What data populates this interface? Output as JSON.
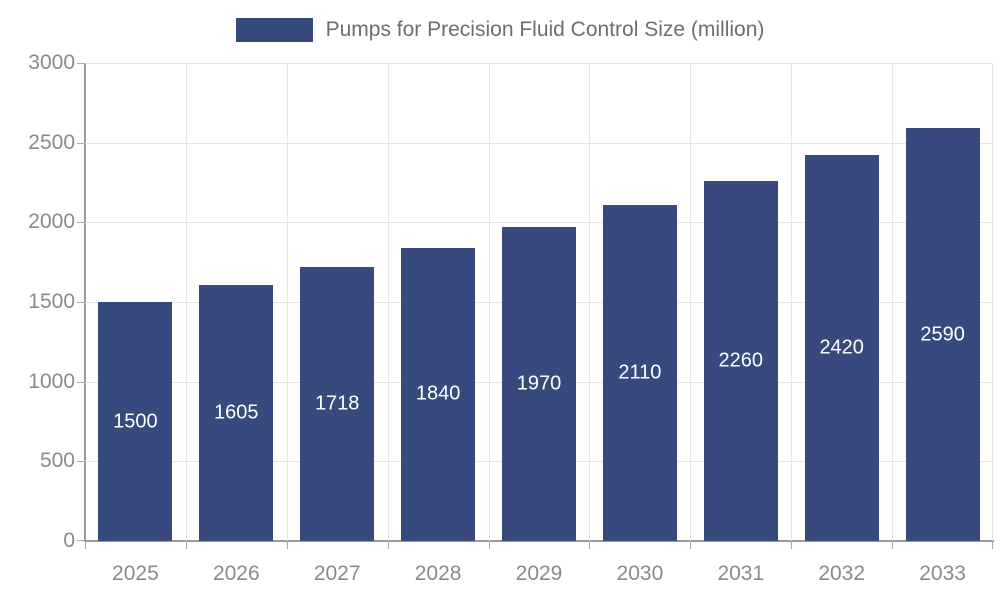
{
  "legend": {
    "label": "Pumps for Precision Fluid Control Size (million)"
  },
  "colors": {
    "bar": "#38497E",
    "axis_line": "#9A9A9A",
    "gridline": "#E5E5E5",
    "tick_mark": "#ABABAB",
    "axis_label": "#8A8A8A",
    "legend_label": "#6E6E6E",
    "value_label": "#FFFFFF"
  },
  "chart_data": {
    "type": "bar",
    "title": "",
    "xlabel": "",
    "ylabel": "",
    "categories": [
      "2025",
      "2026",
      "2027",
      "2028",
      "2029",
      "2030",
      "2031",
      "2032",
      "2033"
    ],
    "series": [
      {
        "name": "Pumps for Precision Fluid Control Size (million)",
        "values": [
          1500,
          1605,
          1718,
          1840,
          1970,
          2110,
          2260,
          2420,
          2590
        ]
      }
    ],
    "value_labels_position": "inside-center",
    "ylim": [
      0,
      3000
    ],
    "yticks": [
      0,
      500,
      1000,
      1500,
      2000,
      2500,
      3000
    ],
    "grid": true,
    "legend_position": "top-center"
  }
}
